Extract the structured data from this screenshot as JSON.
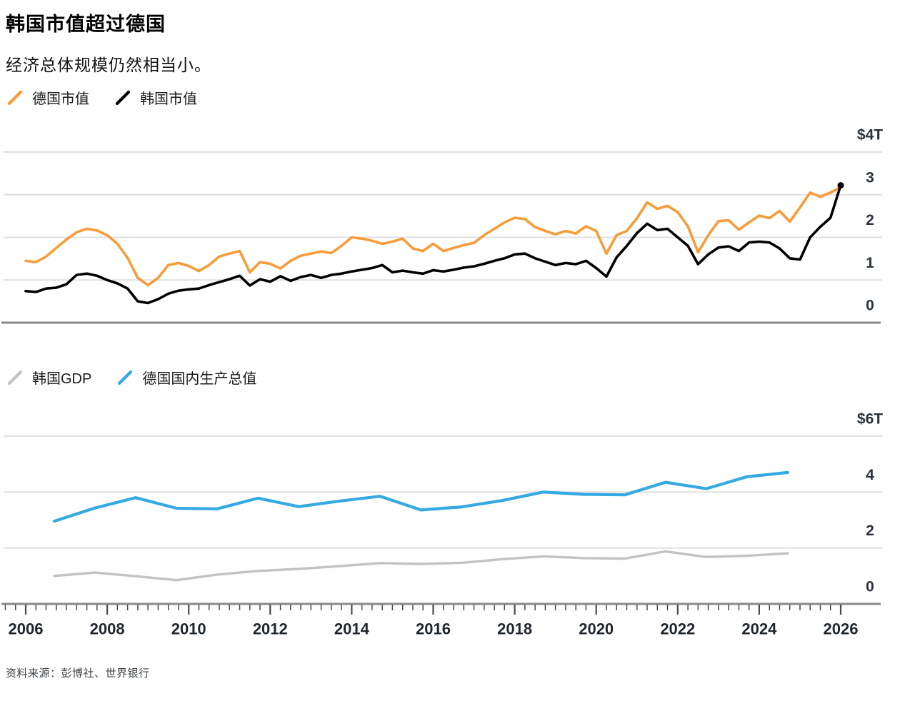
{
  "header": {
    "title": "韩国市值超过德国",
    "subtitle": "经济总体规模仍然相当小。"
  },
  "source": {
    "text": "资料来源：彭博社、世界银行"
  },
  "colors": {
    "germany_market_cap": "#F79C39",
    "korea_market_cap": "#000000",
    "korea_gdp": "#C3C3C3",
    "germany_gdp": "#35A9E1",
    "gridline": "#E0E0E0",
    "axis_line": "#8A8A8A",
    "tick": "#4A4A4A",
    "end_dot": "#000000"
  },
  "legends": {
    "market_cap": {
      "items": [
        {
          "key": "germany-market-cap",
          "label": "德国市值",
          "color_ref": "germany_market_cap"
        },
        {
          "key": "korea-market-cap",
          "label": "韩国市值",
          "color_ref": "korea_market_cap"
        }
      ]
    },
    "gdp": {
      "items": [
        {
          "key": "korea-gdp",
          "label": "韩国GDP",
          "color_ref": "korea_gdp"
        },
        {
          "key": "germany-gdp",
          "label": "德国国内生产总值",
          "color_ref": "germany_gdp"
        }
      ]
    }
  },
  "chart_data": [
    {
      "type": "line",
      "name": "market-cap-chart",
      "units": "trillion USD",
      "x_start": 2006.0,
      "x_step": 0.25,
      "xlim": [
        2006,
        2026
      ],
      "ylim": [
        0,
        4.2
      ],
      "grid_values": [
        4,
        3,
        2,
        1
      ],
      "y_ticks": {
        "values": [
          4,
          3,
          2,
          1,
          0
        ],
        "labels": [
          "$4T",
          "3",
          "2",
          "1",
          "0"
        ]
      },
      "legend_position": "top-left",
      "grid": true,
      "series": [
        {
          "key": "germany-market-cap",
          "name": "德国市值",
          "color_ref": "germany_market_cap",
          "stroke_width": 3.6,
          "values": [
            1.45,
            1.42,
            1.55,
            1.75,
            1.95,
            2.12,
            2.2,
            2.16,
            2.05,
            1.85,
            1.52,
            1.05,
            0.88,
            1.05,
            1.35,
            1.4,
            1.33,
            1.21,
            1.35,
            1.55,
            1.62,
            1.68,
            1.18,
            1.42,
            1.38,
            1.27,
            1.45,
            1.57,
            1.62,
            1.67,
            1.63,
            1.8,
            2.0,
            1.97,
            1.92,
            1.85,
            1.9,
            1.97,
            1.74,
            1.68,
            1.85,
            1.68,
            1.75,
            1.82,
            1.87,
            2.05,
            2.2,
            2.35,
            2.46,
            2.43,
            2.24,
            2.15,
            2.07,
            2.15,
            2.09,
            2.26,
            2.15,
            1.62,
            2.05,
            2.15,
            2.45,
            2.82,
            2.67,
            2.74,
            2.59,
            2.26,
            1.65,
            2.05,
            2.38,
            2.4,
            2.18,
            2.35,
            2.51,
            2.45,
            2.62,
            2.37,
            2.7,
            3.05,
            2.95,
            3.05,
            3.18
          ]
        },
        {
          "key": "korea-market-cap",
          "name": "韩国市值",
          "color_ref": "korea_market_cap",
          "stroke_width": 3.6,
          "end_dot": true,
          "values": [
            0.74,
            0.72,
            0.8,
            0.82,
            0.9,
            1.12,
            1.15,
            1.1,
            1.0,
            0.92,
            0.8,
            0.5,
            0.46,
            0.55,
            0.68,
            0.75,
            0.78,
            0.8,
            0.88,
            0.95,
            1.02,
            1.1,
            0.87,
            1.02,
            0.96,
            1.09,
            0.98,
            1.07,
            1.12,
            1.05,
            1.12,
            1.15,
            1.2,
            1.24,
            1.28,
            1.35,
            1.18,
            1.22,
            1.18,
            1.15,
            1.23,
            1.2,
            1.24,
            1.29,
            1.32,
            1.38,
            1.45,
            1.51,
            1.6,
            1.62,
            1.51,
            1.43,
            1.35,
            1.4,
            1.37,
            1.45,
            1.28,
            1.08,
            1.53,
            1.8,
            2.1,
            2.32,
            2.17,
            2.2,
            2.0,
            1.8,
            1.37,
            1.6,
            1.76,
            1.79,
            1.68,
            1.88,
            1.9,
            1.88,
            1.74,
            1.51,
            1.48,
            2.0,
            2.25,
            2.46,
            3.22
          ]
        }
      ]
    },
    {
      "type": "line",
      "name": "gdp-chart",
      "units": "trillion USD",
      "x_years": [
        2006,
        2007,
        2008,
        2009,
        2010,
        2011,
        2012,
        2013,
        2014,
        2015,
        2016,
        2017,
        2018,
        2019,
        2020,
        2021,
        2022,
        2023,
        2024
      ],
      "x_plot_offset_years": 0.7,
      "xlim": [
        2006,
        2026
      ],
      "ylim": [
        0,
        6.6
      ],
      "grid_values": [
        6,
        4,
        2
      ],
      "y_ticks": {
        "values": [
          6,
          4,
          2,
          0
        ],
        "labels": [
          "$6T",
          "4",
          "2",
          "0"
        ]
      },
      "legend_position": "top-left",
      "grid": true,
      "series": [
        {
          "key": "korea-gdp",
          "name": "韩国GDP",
          "color_ref": "korea_gdp",
          "stroke_width": 3.4,
          "values": [
            1.0,
            1.12,
            0.99,
            0.85,
            1.05,
            1.18,
            1.25,
            1.35,
            1.46,
            1.43,
            1.47,
            1.6,
            1.7,
            1.64,
            1.62,
            1.88,
            1.68,
            1.72,
            1.81
          ]
        },
        {
          "key": "germany-gdp",
          "name": "德国国内生产总值",
          "color_ref": "germany_gdp",
          "stroke_width": 4.2,
          "values": [
            2.96,
            3.43,
            3.8,
            3.42,
            3.4,
            3.78,
            3.48,
            3.68,
            3.85,
            3.36,
            3.47,
            3.7,
            4.0,
            3.92,
            3.9,
            4.35,
            4.12,
            4.55,
            4.7
          ]
        }
      ]
    }
  ],
  "x_axis": {
    "labeled_years": [
      2006,
      2008,
      2010,
      2012,
      2014,
      2016,
      2018,
      2020,
      2022,
      2024,
      2026
    ],
    "tick_interval_years": 0.25,
    "tick_range": [
      2005.5,
      2026.0
    ]
  }
}
